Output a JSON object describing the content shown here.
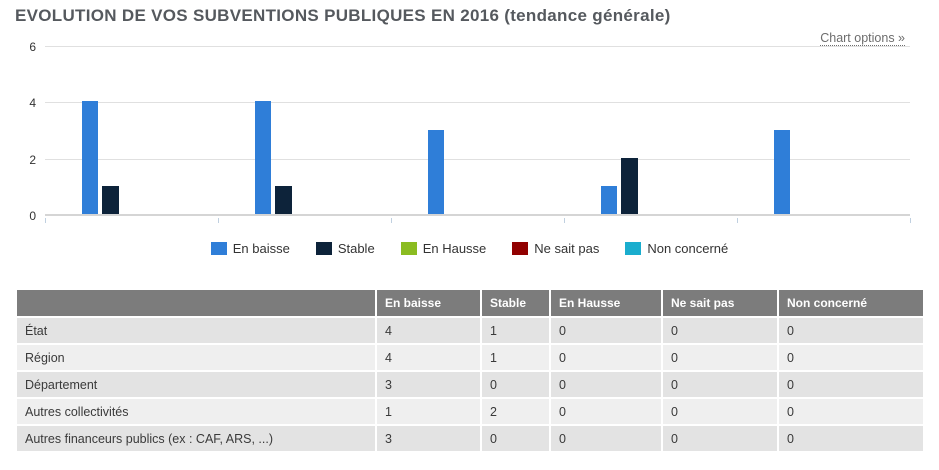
{
  "page": {
    "title": "EVOLUTION DE VOS SUBVENTIONS PUBLIQUES EN 2016 (tendance générale)",
    "chart_options_label": "Chart options »"
  },
  "chart_data": {
    "type": "bar",
    "title": "",
    "xlabel": "",
    "ylabel": "",
    "ylim": [
      0,
      6
    ],
    "yticks": [
      0,
      2,
      4,
      6
    ],
    "grid": true,
    "legend_position": "bottom",
    "categories": [
      "État",
      "Région",
      "Département",
      "Autres collectivités",
      "Autres financeurs publics (ex : CAF, ARS, ...)"
    ],
    "series": [
      {
        "name": "En baisse",
        "color": "#2f7ed8",
        "values": [
          4,
          4,
          3,
          1,
          3
        ]
      },
      {
        "name": "Stable",
        "color": "#0d233a",
        "values": [
          1,
          1,
          0,
          2,
          0
        ]
      },
      {
        "name": "En Hausse",
        "color": "#8bbc21",
        "values": [
          0,
          0,
          0,
          0,
          0
        ]
      },
      {
        "name": "Ne sait pas",
        "color": "#910000",
        "values": [
          0,
          0,
          0,
          0,
          0
        ]
      },
      {
        "name": "Non concerné",
        "color": "#1aadce",
        "values": [
          0,
          0,
          0,
          0,
          0
        ]
      }
    ]
  },
  "table": {
    "corner_label": "",
    "columns": [
      "En baisse",
      "Stable",
      "En Hausse",
      "Ne sait pas",
      "Non concerné"
    ],
    "rows": [
      {
        "label": "État",
        "values": [
          4,
          1,
          0,
          0,
          0
        ]
      },
      {
        "label": "Région",
        "values": [
          4,
          1,
          0,
          0,
          0
        ]
      },
      {
        "label": "Département",
        "values": [
          3,
          0,
          0,
          0,
          0
        ]
      },
      {
        "label": "Autres collectivités",
        "values": [
          1,
          2,
          0,
          0,
          0
        ]
      },
      {
        "label": "Autres financeurs publics (ex : CAF, ARS, ...)",
        "values": [
          3,
          0,
          0,
          0,
          0
        ]
      }
    ]
  }
}
